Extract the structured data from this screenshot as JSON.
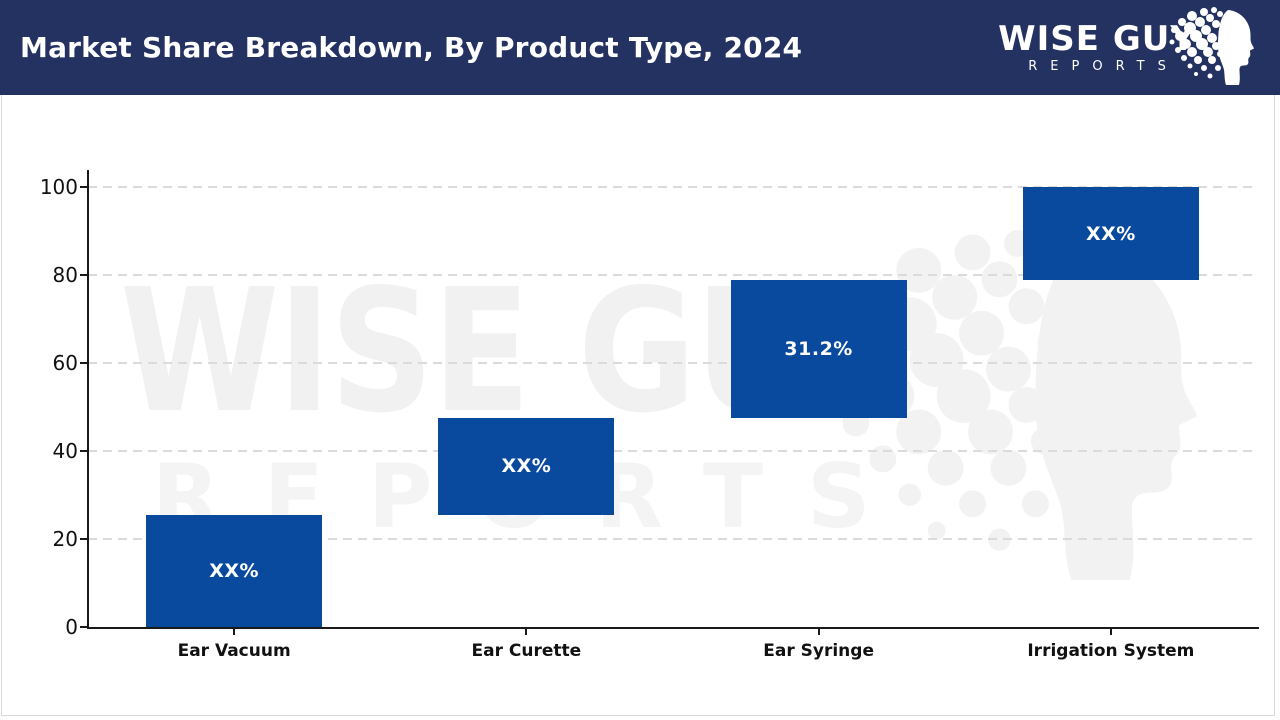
{
  "header": {
    "title": "Market Share Breakdown, By Product Type, 2024",
    "logo": {
      "line1": "WISE GUY",
      "line2": "REPORTS"
    }
  },
  "watermark": {
    "line1": "WISE GU",
    "line2": "REPORTS"
  },
  "colors": {
    "header_bg": "#233261",
    "bar": "#0a4a9e",
    "grid": "#dbdbdb",
    "axis": "#1a1a1a",
    "watermark": "#f1f1f1",
    "label_text": "#ffffff",
    "tick_text": "#111111"
  },
  "chart_data": {
    "type": "bar",
    "variant": "floating-waterfall",
    "title": "Market Share Breakdown, By Product Type, 2024",
    "categories": [
      "Ear Vacuum",
      "Ear Curette",
      "Ear Syringe",
      "Irrigation System"
    ],
    "bars": [
      {
        "category": "Ear Vacuum",
        "label": "XX%",
        "start": 0,
        "end": 25.4,
        "value": 25.4
      },
      {
        "category": "Ear Curette",
        "label": "XX%",
        "start": 25.4,
        "end": 47.6,
        "value": 22.2
      },
      {
        "category": "Ear Syringe",
        "label": "31.2%",
        "start": 47.6,
        "end": 78.8,
        "value": 31.2
      },
      {
        "category": "Irrigation System",
        "label": "XX%",
        "start": 78.8,
        "end": 100,
        "value": 21.2
      }
    ],
    "xlabel": "",
    "ylabel": "",
    "yticks": [
      0,
      20,
      40,
      60,
      80,
      100
    ],
    "ylim": [
      0,
      100
    ],
    "grid": "horizontal-dashed",
    "legend": "none",
    "bar_value_labels_inside": true
  }
}
